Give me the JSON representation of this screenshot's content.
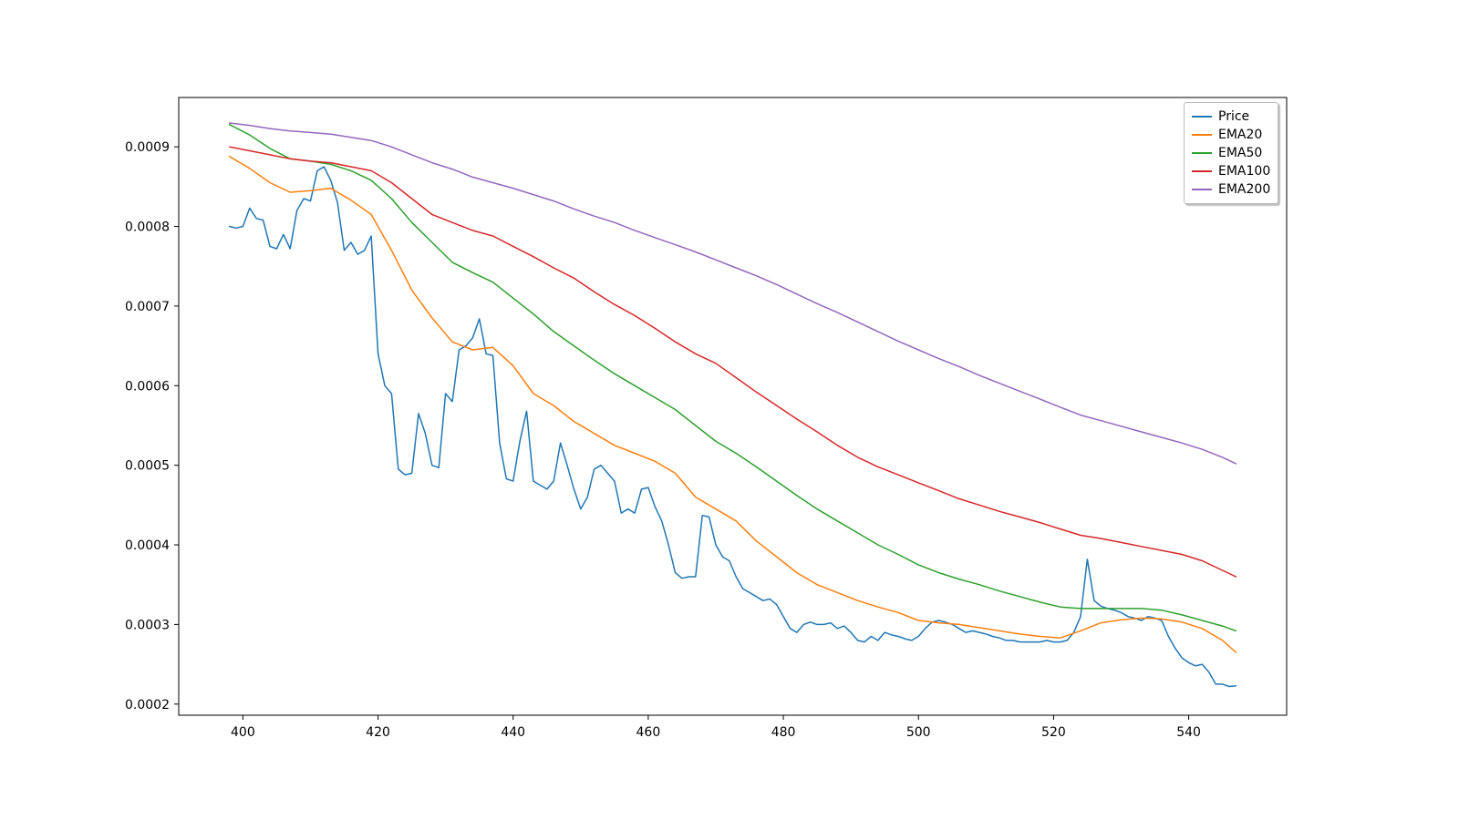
{
  "figure": {
    "background_color": "#ffffff",
    "axes_edge_color": "#000000"
  },
  "legend_labels": [
    "Price",
    "EMA20",
    "EMA50",
    "EMA100",
    "EMA200"
  ],
  "chart_data": {
    "type": "line",
    "title": "",
    "xlabel": "",
    "ylabel": "",
    "grid": false,
    "xlim": [
      390.5,
      554.5
    ],
    "ylim": [
      0.000186,
      0.000962
    ],
    "xticks": [
      400,
      420,
      440,
      460,
      480,
      500,
      520,
      540
    ],
    "xtick_labels": [
      "400",
      "420",
      "440",
      "460",
      "480",
      "500",
      "520",
      "540"
    ],
    "yticks": [
      0.0002,
      0.0003,
      0.0004,
      0.0005,
      0.0006,
      0.0007,
      0.0008,
      0.0009
    ],
    "ytick_labels": [
      "0.0002",
      "0.0003",
      "0.0004",
      "0.0005",
      "0.0006",
      "0.0007",
      "0.0008",
      "0.0009"
    ],
    "legend": {
      "position": "upper right",
      "entries": [
        "Price",
        "EMA20",
        "EMA50",
        "EMA100",
        "EMA200"
      ]
    },
    "series": [
      {
        "name": "Price",
        "color": "#1f77b4",
        "x": [
          398,
          399,
          400,
          401,
          402,
          403,
          404,
          405,
          406,
          407,
          408,
          409,
          410,
          411,
          412,
          413,
          414,
          415,
          416,
          417,
          418,
          419,
          420,
          421,
          422,
          423,
          424,
          425,
          426,
          427,
          428,
          429,
          430,
          431,
          432,
          433,
          434,
          435,
          436,
          437,
          438,
          439,
          440,
          441,
          442,
          443,
          444,
          445,
          446,
          447,
          448,
          449,
          450,
          451,
          452,
          453,
          454,
          455,
          456,
          457,
          458,
          459,
          460,
          461,
          462,
          463,
          464,
          465,
          466,
          467,
          468,
          469,
          470,
          471,
          472,
          473,
          474,
          475,
          476,
          477,
          478,
          479,
          480,
          481,
          482,
          483,
          484,
          485,
          486,
          487,
          488,
          489,
          490,
          491,
          492,
          493,
          494,
          495,
          496,
          497,
          498,
          499,
          500,
          501,
          502,
          503,
          504,
          505,
          506,
          507,
          508,
          509,
          510,
          511,
          512,
          513,
          514,
          515,
          516,
          517,
          518,
          519,
          520,
          521,
          522,
          523,
          524,
          525,
          526,
          527,
          528,
          529,
          530,
          531,
          532,
          533,
          534,
          535,
          536,
          537,
          538,
          539,
          540,
          541,
          542,
          543,
          544,
          545,
          546,
          547
        ],
        "y": [
          0.0008,
          0.000798,
          0.0008,
          0.000823,
          0.00081,
          0.000808,
          0.000775,
          0.000772,
          0.00079,
          0.000772,
          0.00082,
          0.000835,
          0.000832,
          0.00087,
          0.000875,
          0.000858,
          0.00083,
          0.00077,
          0.00078,
          0.000765,
          0.00077,
          0.000788,
          0.00064,
          0.0006,
          0.00059,
          0.000495,
          0.000488,
          0.00049,
          0.000565,
          0.00054,
          0.0005,
          0.000497,
          0.00059,
          0.00058,
          0.000645,
          0.00065,
          0.00066,
          0.000684,
          0.00064,
          0.000638,
          0.000528,
          0.000483,
          0.00048,
          0.00053,
          0.000568,
          0.00048,
          0.000475,
          0.00047,
          0.00048,
          0.000528,
          0.0005,
          0.00047,
          0.000445,
          0.00046,
          0.000495,
          0.0005,
          0.00049,
          0.00048,
          0.00044,
          0.000445,
          0.00044,
          0.00047,
          0.000472,
          0.000448,
          0.00043,
          0.0004,
          0.000365,
          0.000358,
          0.00036,
          0.00036,
          0.000437,
          0.000435,
          0.0004,
          0.000385,
          0.00038,
          0.00036,
          0.000345,
          0.00034,
          0.000335,
          0.00033,
          0.000332,
          0.000325,
          0.00031,
          0.000295,
          0.00029,
          0.0003,
          0.000303,
          0.0003,
          0.0003,
          0.000302,
          0.000295,
          0.000298,
          0.00029,
          0.00028,
          0.000278,
          0.000285,
          0.00028,
          0.00029,
          0.000287,
          0.000285,
          0.000282,
          0.00028,
          0.000285,
          0.000295,
          0.000303,
          0.000305,
          0.000303,
          0.0003,
          0.000295,
          0.00029,
          0.000292,
          0.00029,
          0.000288,
          0.000285,
          0.000283,
          0.00028,
          0.00028,
          0.000278,
          0.000278,
          0.000278,
          0.000278,
          0.00028,
          0.000278,
          0.000278,
          0.00028,
          0.00029,
          0.00031,
          0.000382,
          0.00033,
          0.000323,
          0.00032,
          0.000318,
          0.000315,
          0.00031,
          0.000308,
          0.000305,
          0.00031,
          0.000308,
          0.000305,
          0.000285,
          0.00027,
          0.000258,
          0.000252,
          0.000248,
          0.00025,
          0.00024,
          0.000225,
          0.000225,
          0.000222,
          0.000223
        ]
      },
      {
        "name": "EMA20",
        "color": "#ff7f0e",
        "x": [
          398,
          401,
          404,
          407,
          410,
          413,
          416,
          419,
          422,
          425,
          428,
          431,
          434,
          437,
          440,
          443,
          446,
          449,
          452,
          455,
          458,
          461,
          464,
          467,
          470,
          473,
          476,
          479,
          482,
          485,
          488,
          491,
          494,
          497,
          500,
          503,
          506,
          509,
          512,
          515,
          518,
          521,
          524,
          527,
          530,
          533,
          536,
          539,
          542,
          545,
          547
        ],
        "y": [
          0.000888,
          0.000873,
          0.000855,
          0.000843,
          0.000845,
          0.000848,
          0.000833,
          0.000815,
          0.00077,
          0.00072,
          0.000685,
          0.000655,
          0.000645,
          0.000648,
          0.000625,
          0.00059,
          0.000575,
          0.000555,
          0.00054,
          0.000525,
          0.000515,
          0.000505,
          0.00049,
          0.00046,
          0.000445,
          0.00043,
          0.000405,
          0.000385,
          0.000365,
          0.00035,
          0.00034,
          0.00033,
          0.000322,
          0.000315,
          0.000305,
          0.000302,
          0.0003,
          0.000296,
          0.000292,
          0.000288,
          0.000285,
          0.000283,
          0.000292,
          0.000302,
          0.000306,
          0.000308,
          0.000307,
          0.000303,
          0.000295,
          0.00028,
          0.000265
        ]
      },
      {
        "name": "EMA50",
        "color": "#2ca02c",
        "x": [
          398,
          401,
          404,
          407,
          410,
          413,
          416,
          419,
          422,
          425,
          428,
          431,
          434,
          437,
          440,
          443,
          446,
          449,
          452,
          455,
          458,
          461,
          464,
          467,
          470,
          473,
          476,
          479,
          482,
          485,
          488,
          491,
          494,
          497,
          500,
          503,
          506,
          509,
          512,
          515,
          518,
          521,
          524,
          527,
          530,
          533,
          536,
          539,
          542,
          545,
          547
        ],
        "y": [
          0.000928,
          0.000915,
          0.000898,
          0.000885,
          0.000882,
          0.000878,
          0.00087,
          0.000858,
          0.000835,
          0.000805,
          0.00078,
          0.000755,
          0.000742,
          0.00073,
          0.00071,
          0.00069,
          0.000668,
          0.00065,
          0.000632,
          0.000615,
          0.0006,
          0.000585,
          0.00057,
          0.00055,
          0.00053,
          0.000515,
          0.000498,
          0.00048,
          0.000462,
          0.000445,
          0.00043,
          0.000415,
          0.0004,
          0.000388,
          0.000375,
          0.000365,
          0.000357,
          0.00035,
          0.000342,
          0.000335,
          0.000328,
          0.000322,
          0.00032,
          0.00032,
          0.00032,
          0.00032,
          0.000318,
          0.000312,
          0.000305,
          0.000298,
          0.000292
        ]
      },
      {
        "name": "EMA100",
        "color": "#d62728",
        "x": [
          398,
          401,
          404,
          407,
          410,
          413,
          416,
          419,
          422,
          425,
          428,
          431,
          434,
          437,
          440,
          443,
          446,
          449,
          452,
          455,
          458,
          461,
          464,
          467,
          470,
          473,
          476,
          479,
          482,
          485,
          488,
          491,
          494,
          497,
          500,
          503,
          506,
          509,
          512,
          515,
          518,
          521,
          524,
          527,
          530,
          533,
          536,
          539,
          542,
          545,
          547
        ],
        "y": [
          0.0009,
          0.000895,
          0.00089,
          0.000885,
          0.000882,
          0.00088,
          0.000875,
          0.00087,
          0.000855,
          0.000835,
          0.000815,
          0.000805,
          0.000795,
          0.000788,
          0.000775,
          0.000762,
          0.000748,
          0.000735,
          0.000718,
          0.000702,
          0.000688,
          0.000672,
          0.000655,
          0.00064,
          0.000628,
          0.00061,
          0.000592,
          0.000575,
          0.000558,
          0.000542,
          0.000525,
          0.00051,
          0.000498,
          0.000488,
          0.000478,
          0.000468,
          0.000458,
          0.00045,
          0.000442,
          0.000435,
          0.000428,
          0.00042,
          0.000412,
          0.000408,
          0.000403,
          0.000398,
          0.000393,
          0.000388,
          0.00038,
          0.000368,
          0.00036
        ]
      },
      {
        "name": "EMA200",
        "color": "#9467bd",
        "x": [
          398,
          401,
          404,
          407,
          410,
          413,
          416,
          419,
          422,
          425,
          428,
          431,
          434,
          437,
          440,
          443,
          446,
          449,
          452,
          455,
          458,
          461,
          464,
          467,
          470,
          473,
          476,
          479,
          482,
          485,
          488,
          491,
          494,
          497,
          500,
          503,
          506,
          509,
          512,
          515,
          518,
          521,
          524,
          527,
          530,
          533,
          536,
          539,
          542,
          545,
          547
        ],
        "y": [
          0.00093,
          0.000927,
          0.000923,
          0.00092,
          0.000918,
          0.000916,
          0.000912,
          0.000908,
          0.0009,
          0.00089,
          0.00088,
          0.000872,
          0.000862,
          0.000855,
          0.000848,
          0.00084,
          0.000832,
          0.000822,
          0.000813,
          0.000805,
          0.000795,
          0.000786,
          0.000777,
          0.000768,
          0.000758,
          0.000748,
          0.000738,
          0.000727,
          0.000715,
          0.000703,
          0.000692,
          0.00068,
          0.000668,
          0.000656,
          0.000645,
          0.000634,
          0.000624,
          0.000613,
          0.000603,
          0.000593,
          0.000583,
          0.000573,
          0.000563,
          0.000556,
          0.000549,
          0.000542,
          0.000535,
          0.000528,
          0.00052,
          0.00051,
          0.000502
        ]
      }
    ]
  }
}
